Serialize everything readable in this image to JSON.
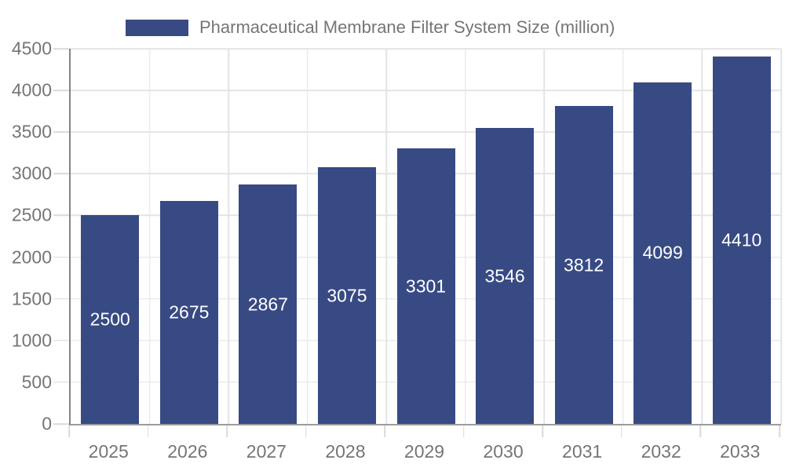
{
  "chart_data": {
    "type": "bar",
    "title": "Pharmaceutical Membrane Filter System Size (million)",
    "categories": [
      "2025",
      "2026",
      "2027",
      "2028",
      "2029",
      "2030",
      "2031",
      "2032",
      "2033"
    ],
    "values": [
      2500,
      2675,
      2867,
      3075,
      3301,
      3546,
      3812,
      4099,
      4410
    ],
    "xlabel": "",
    "ylabel": "",
    "ylim": [
      0,
      4500
    ],
    "yticks": [
      0,
      500,
      1000,
      1500,
      2000,
      2500,
      3000,
      3500,
      4000,
      4500
    ],
    "grid": true,
    "legend_position": "top",
    "bar_label_position": "inside-middle",
    "colors": {
      "bar": "#384A83",
      "bar_label": "#ffffff",
      "axis_text": "#757575",
      "title_text": "#757575",
      "gridline": "#e4e4e4",
      "y_axis_line": "#848484",
      "x_axis_line": "#9c9c9c",
      "tick": "#d9d9d9",
      "background": "#ffffff"
    }
  }
}
